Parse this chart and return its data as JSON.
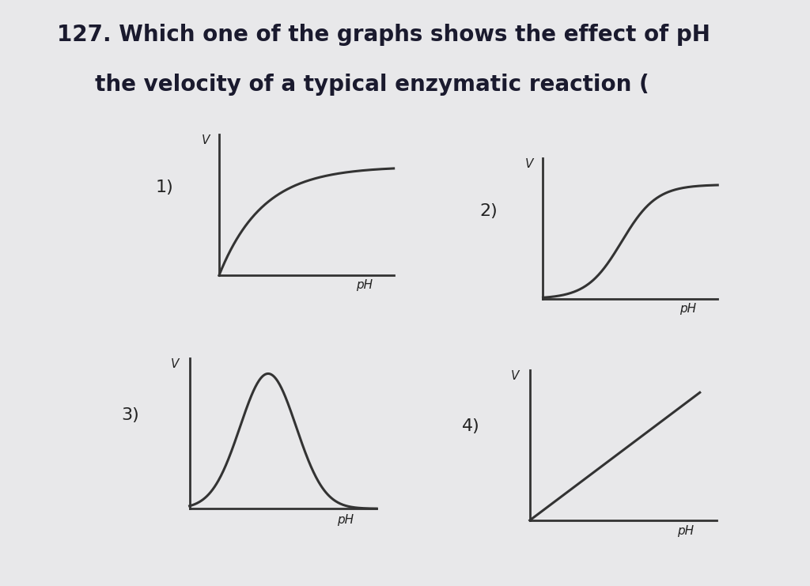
{
  "background_color": "#e8e8ea",
  "title_line1": "127. Which one of the graphs shows the effect of pH",
  "title_line2": "     the velocity of a typical enzymatic reaction (",
  "title_fontsize": 20,
  "title_color": "#1a1a2e",
  "axis_label_fontsize": 11,
  "number_fontsize": 16,
  "axis_color": "#333333",
  "curve_color": "#333333",
  "text_color": "#222222",
  "graph1_label": "1)",
  "graph2_label": "2)",
  "graph3_label": "3)",
  "graph4_label": "4)",
  "v_label": "V",
  "ph_label": "pH"
}
